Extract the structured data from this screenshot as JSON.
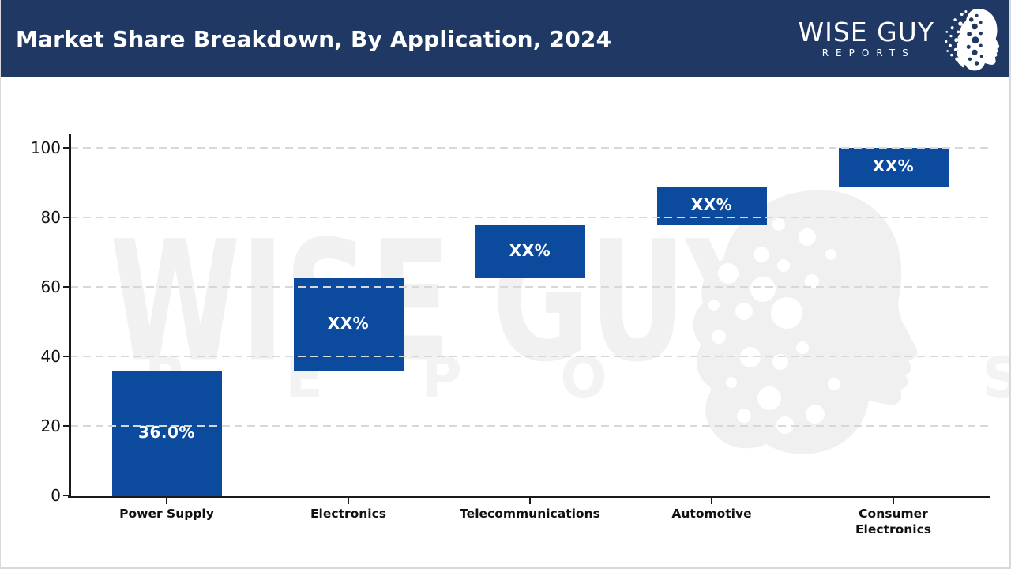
{
  "header": {
    "title": "Market Share Breakdown, By Application, 2024",
    "logo": {
      "line1": "WISE GUY",
      "line2": "REPORTS"
    }
  },
  "watermark": {
    "line1": "WISE GUY",
    "line2": "REPORTS"
  },
  "colors": {
    "header_bg": "#1F3864",
    "bar": "#0C4A9E",
    "grid": "#D8D8D8",
    "axis": "#1A1A1A",
    "bar_label_text": "#FFFFFF",
    "text": "#111111",
    "watermark": "#F1F1F1",
    "border": "#D9D9D9"
  },
  "chart_data": {
    "type": "bar",
    "subtype": "waterfall",
    "title": "Market Share Breakdown, By Application, 2024",
    "categories": [
      "Power Supply",
      "Electronics",
      "Telecommunications",
      "Automotive",
      "Consumer Electronics"
    ],
    "segments": [
      {
        "category": "Power Supply",
        "start": 0,
        "end": 36.0,
        "label": "36.0%"
      },
      {
        "category": "Electronics",
        "start": 36.0,
        "end": 62.6,
        "label": "XX%"
      },
      {
        "category": "Telecommunications",
        "start": 62.6,
        "end": 77.7,
        "label": "XX%"
      },
      {
        "category": "Automotive",
        "start": 77.7,
        "end": 88.9,
        "label": "XX%"
      },
      {
        "category": "Consumer Electronics",
        "start": 88.9,
        "end": 100.0,
        "label": "XX%"
      }
    ],
    "xlabel": "",
    "ylabel": "",
    "ylim": [
      0,
      100
    ],
    "yticks": [
      0,
      20,
      40,
      60,
      80,
      100
    ],
    "grid": "horizontal-dashed",
    "legend": "none",
    "bar_value_unit": "%"
  }
}
